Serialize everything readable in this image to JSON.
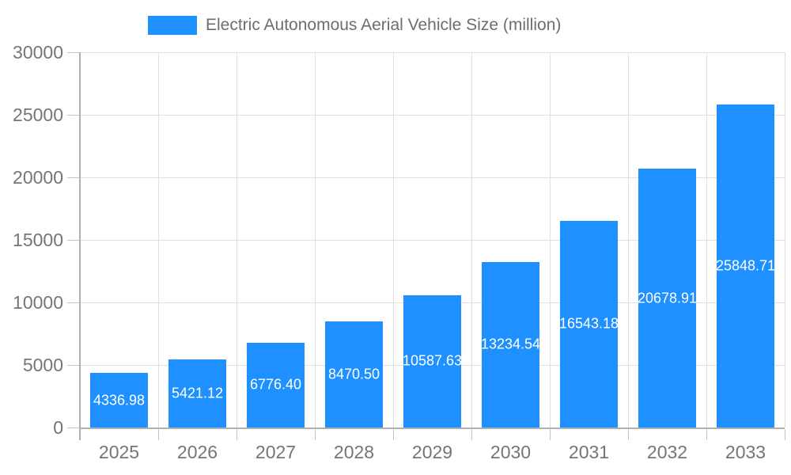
{
  "legend": {
    "swatch_color": "#1e90ff"
  },
  "chart_data": {
    "type": "bar",
    "title": "Electric Autonomous Aerial Vehicle Size (million)",
    "categories": [
      "2025",
      "2026",
      "2027",
      "2028",
      "2029",
      "2030",
      "2031",
      "2032",
      "2033"
    ],
    "values": [
      4336.98,
      5421.12,
      6776.4,
      8470.5,
      10587.63,
      13234.54,
      16543.18,
      20678.91,
      25848.71
    ],
    "bar_labels": [
      "4336.98",
      "5421.12",
      "6776.40",
      "8470.50",
      "10587.63",
      "13234.54",
      "16543.18",
      "20678.91",
      "25848.71"
    ],
    "xlabel": "",
    "ylabel": "",
    "ylim": [
      0,
      30000
    ],
    "yticks": [
      "0",
      "5000",
      "10000",
      "15000",
      "20000",
      "25000",
      "30000"
    ],
    "ytick_values": [
      0,
      5000,
      10000,
      15000,
      20000,
      25000,
      30000
    ],
    "grid": true,
    "legend_position": "top",
    "colors": {
      "bar": "#1e90ff",
      "bar_label_text": "#ffffff",
      "grid": "#e0e0e0",
      "axis": "#b0b0b0",
      "tick": "#c4c4c4",
      "tick_text": "#757575",
      "legend_text": "#6d6d6d"
    }
  }
}
